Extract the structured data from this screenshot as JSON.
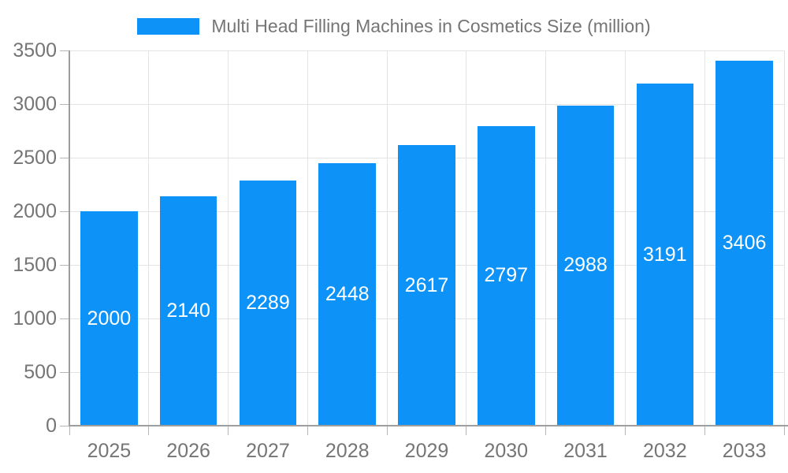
{
  "chart_data": {
    "type": "bar",
    "title": "Multi Head Filling Machines in Cosmetics Size (million)",
    "categories": [
      "2025",
      "2026",
      "2027",
      "2028",
      "2029",
      "2030",
      "2031",
      "2032",
      "2033"
    ],
    "values": [
      2000,
      2140,
      2289,
      2448,
      2617,
      2797,
      2988,
      3191,
      3406
    ],
    "series": [
      {
        "name": "Multi Head Filling Machines in Cosmetics Size (million)",
        "values": [
          2000,
          2140,
          2289,
          2448,
          2617,
          2797,
          2988,
          3191,
          3406
        ]
      }
    ],
    "xlabel": "",
    "ylabel": "",
    "ylim": [
      0,
      3500
    ],
    "yticks": [
      0,
      500,
      1000,
      1500,
      2000,
      2500,
      3000,
      3500
    ],
    "grid": "both",
    "legend_position": "top",
    "value_labels": "inside-center",
    "colors": {
      "bar": "#0d93f7",
      "grid": "#e3e3e3",
      "tick": "#b5b5b5",
      "axis": "#9e9e9e",
      "text": "#757575",
      "value_text": "#ffffff",
      "background": "#ffffff"
    }
  }
}
